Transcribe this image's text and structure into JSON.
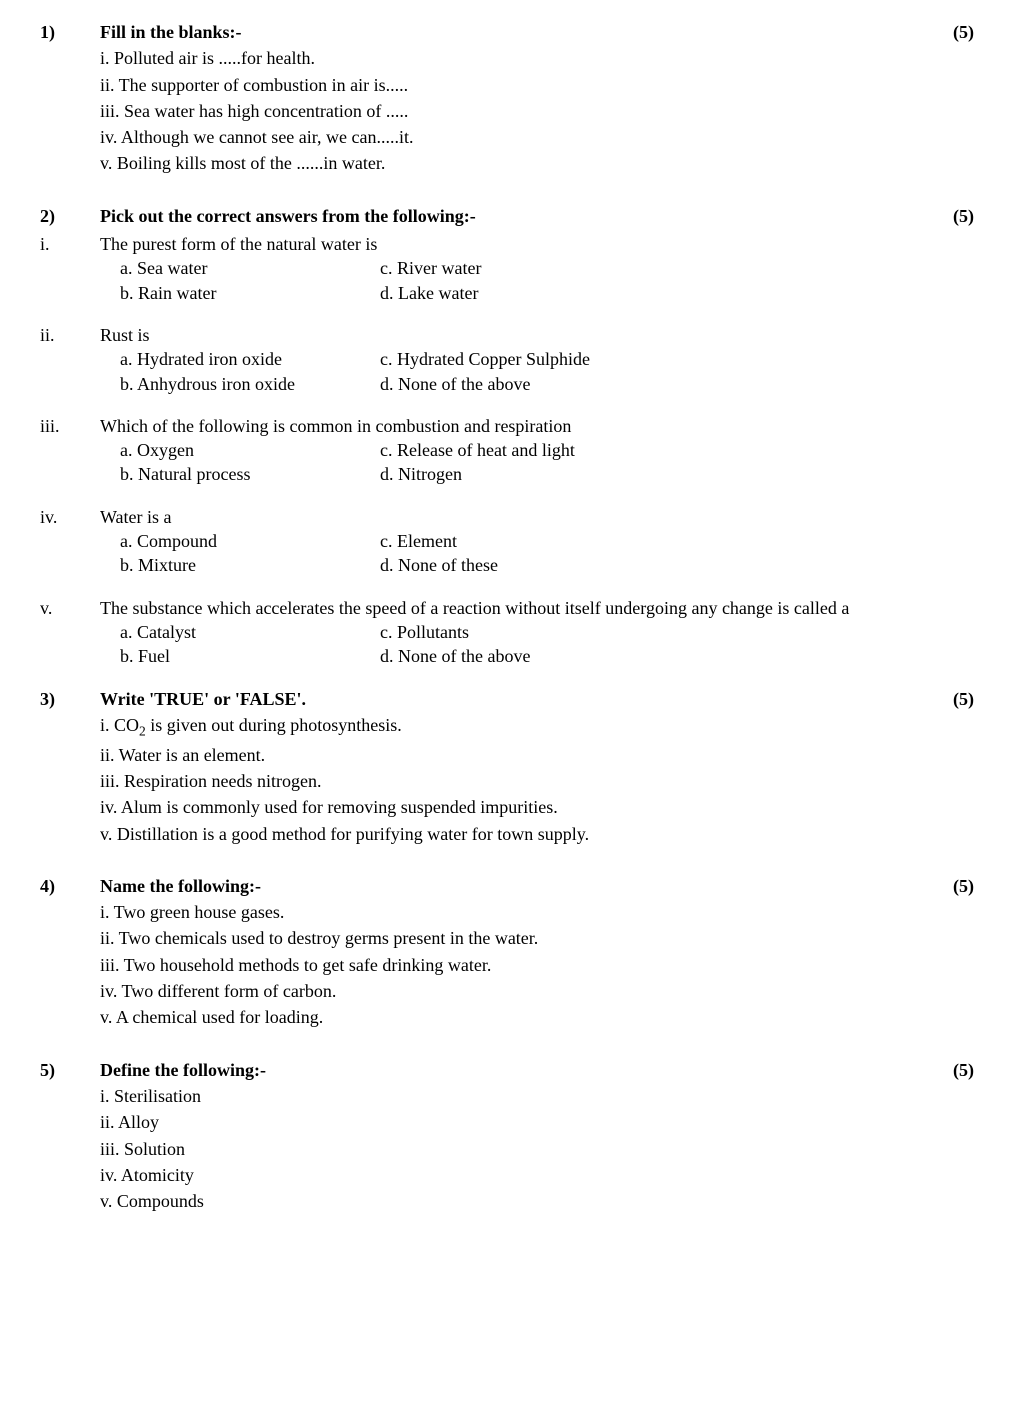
{
  "q1": {
    "num": "1)",
    "title": "Fill in the blanks:-",
    "marks": "(5)",
    "items": [
      "i. Polluted air is .....for health.",
      "ii. The supporter of combustion in air is.....",
      "iii. Sea water has high concentration of .....",
      "iv. Although we cannot see air, we can.....it.",
      "v. Boiling kills most of the ......in water."
    ]
  },
  "q2": {
    "num": "2)",
    "title": "Pick out the correct answers from the following:-",
    "marks": "(5)",
    "subs": [
      {
        "num": "i.",
        "stem": "The purest form of the natural water is",
        "left": [
          "a. Sea water",
          "b. Rain water"
        ],
        "right": [
          "c.  River water",
          "d.  Lake water"
        ]
      },
      {
        "num": "ii.",
        "stem": "Rust is",
        "left": [
          "a. Hydrated iron oxide",
          "b. Anhydrous iron oxide"
        ],
        "right": [
          "c.  Hydrated Copper Sulphide",
          "d.  None of the above"
        ]
      },
      {
        "num": "iii.",
        "stem": "Which of the following is common in combustion and respiration",
        "left": [
          "a. Oxygen",
          "b. Natural process"
        ],
        "right": [
          "c.  Release of heat and light",
          "d.  Nitrogen"
        ]
      },
      {
        "num": "iv.",
        "stem": "Water is a",
        "left": [
          "a. Compound",
          "b. Mixture"
        ],
        "right": [
          "c.  Element",
          "d.  None of these"
        ]
      },
      {
        "num": "v.",
        "stem": "The substance which accelerates the speed of a reaction without itself undergoing any change is called a",
        "left": [
          "a. Catalyst",
          "b. Fuel"
        ],
        "right": [
          "c.  Pollutants",
          "d.  None of the above"
        ]
      }
    ]
  },
  "q3": {
    "num": "3)",
    "title": "Write 'TRUE' or 'FALSE'.",
    "marks": "(5)",
    "items_pre": "i. CO",
    "items_sub": "2",
    "items_post": " is given out during photosynthesis.",
    "items_rest": [
      "ii. Water is an element.",
      "iii. Respiration needs nitrogen.",
      "iv. Alum is commonly used for removing suspended impurities.",
      "v. Distillation is a good method for purifying water for town supply."
    ]
  },
  "q4": {
    "num": "4)",
    "title": "Name the following:-",
    "marks": "(5)",
    "items": [
      "i. Two green house gases.",
      "ii. Two chemicals used to destroy germs present in the water.",
      "iii. Two household methods to get safe drinking water.",
      "iv. Two different form of carbon.",
      "v. A chemical used for loading."
    ]
  },
  "q5": {
    "num": "5)",
    "title": "Define the following:-",
    "marks": "(5)",
    "items": [
      "i. Sterilisation",
      "ii.  Alloy",
      "iii. Solution",
      "iv. Atomicity",
      "v. Compounds"
    ]
  }
}
